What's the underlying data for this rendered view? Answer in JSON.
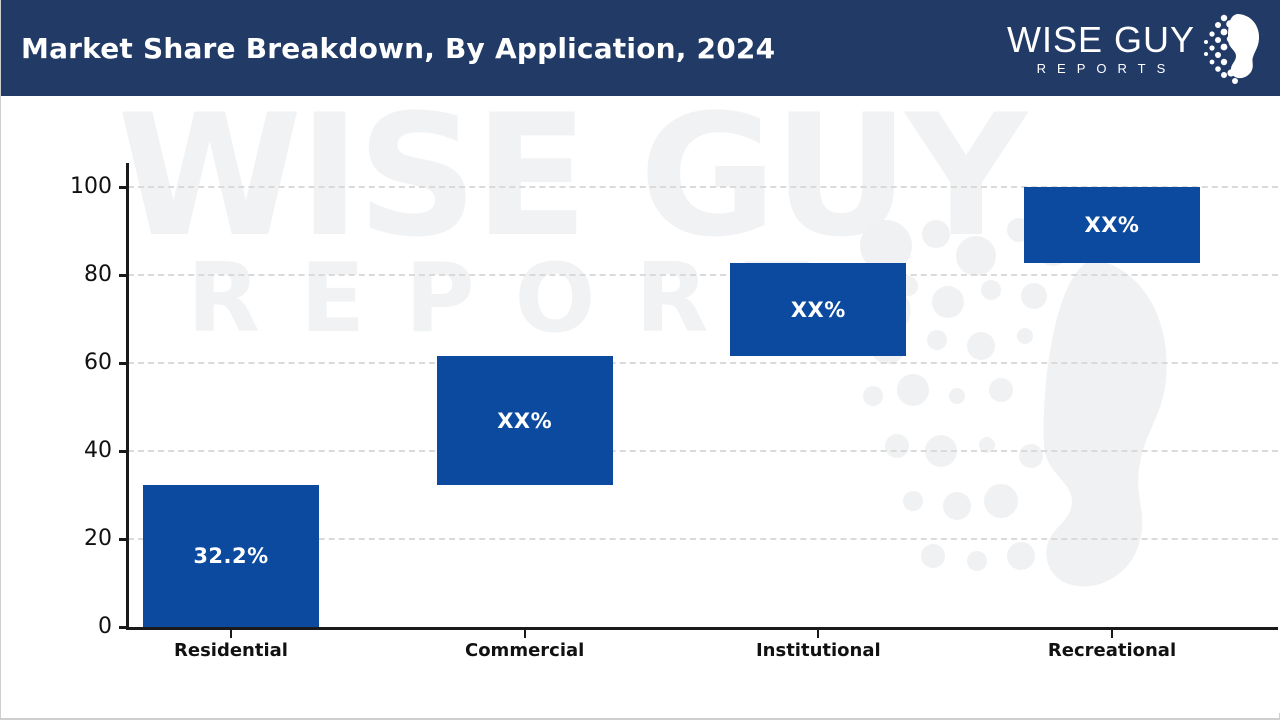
{
  "header": {
    "title": "Market Share Breakdown, By Application, 2024",
    "logo": {
      "line1": "WISE GUY",
      "line2": "REPORTS"
    }
  },
  "watermark": {
    "line1": "WISE GUY",
    "line2": "REPORTS"
  },
  "colors": {
    "header_bg": "#213a66",
    "bar": "#0c4aa0",
    "bar_label": "#ffffff",
    "grid": "#dadada",
    "axis": "#1a1a1a",
    "tick_label": "#111111",
    "watermark": "#f1f2f4"
  },
  "chart_data": {
    "type": "bar",
    "subtype": "floating-waterfall",
    "title": "Market Share Breakdown, By Application, 2024",
    "categories": [
      "Residential",
      "Commercial",
      "Institutional",
      "Recreational"
    ],
    "series": [
      {
        "name": "Market share (%)",
        "segments": [
          {
            "category": "Residential",
            "start": 0,
            "end": 32.2,
            "label": "32.2%"
          },
          {
            "category": "Commercial",
            "start": 32.2,
            "end": 61.5,
            "label": "XX%"
          },
          {
            "category": "Institutional",
            "start": 61.5,
            "end": 82.8,
            "label": "XX%"
          },
          {
            "category": "Recreational",
            "start": 82.8,
            "end": 100,
            "label": "XX%"
          }
        ]
      }
    ],
    "xlabel": "",
    "ylabel": "",
    "ylim": [
      0,
      100
    ],
    "yticks": [
      0,
      20,
      40,
      60,
      80,
      100
    ],
    "grid": "horizontal-dashed",
    "legend": "none"
  }
}
